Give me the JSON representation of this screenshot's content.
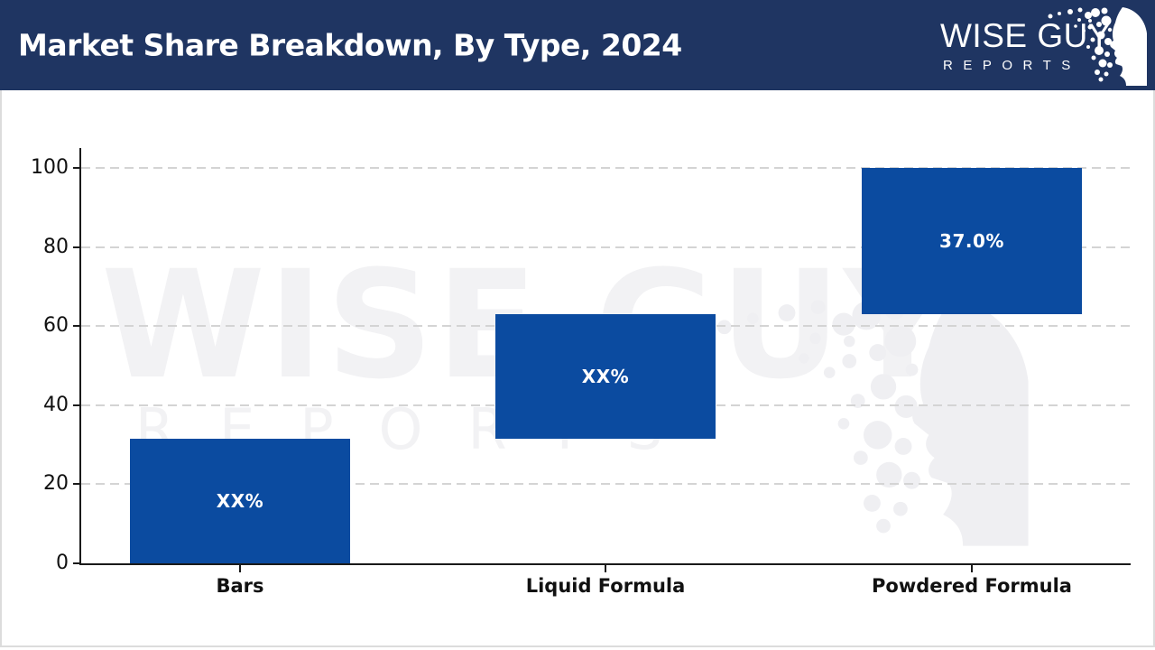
{
  "header": {
    "title": "Market Share Breakdown, By Type, 2024",
    "logo": {
      "line1": "WISE GUY",
      "line2": "REPORTS",
      "face_icon": "face-profile-dots"
    }
  },
  "watermark": {
    "line1": "WISE GUY",
    "line2": "REPORTS"
  },
  "chart_data": {
    "type": "bar",
    "subtype": "waterfall-stacked-segments",
    "title": "Market Share Breakdown, By Type, 2024",
    "categories": [
      "Bars",
      "Liquid Formula",
      "Powdered Formula"
    ],
    "bars": [
      {
        "category": "Bars",
        "label": "XX%",
        "start": 0,
        "end": 31.5
      },
      {
        "category": "Liquid Formula",
        "label": "XX%",
        "start": 31.5,
        "end": 63
      },
      {
        "category": "Powdered Formula",
        "label": "37.0%",
        "start": 63,
        "end": 100
      }
    ],
    "xlabel": "",
    "ylabel": "",
    "yticks": [
      0,
      20,
      40,
      60,
      80,
      100
    ],
    "ylim": [
      0,
      105
    ],
    "grid": "horizontal-dashed",
    "legend": "none",
    "bar_color": "#0b4ba0",
    "bar_label_color": "#ffffff"
  },
  "colors": {
    "header_bg": "#1f3562",
    "bar": "#0b4ba0",
    "grid": "#d4d4d4",
    "axis": "#1a1a1a",
    "watermark": "#f2f2f4",
    "border": "#dcdcdc"
  }
}
